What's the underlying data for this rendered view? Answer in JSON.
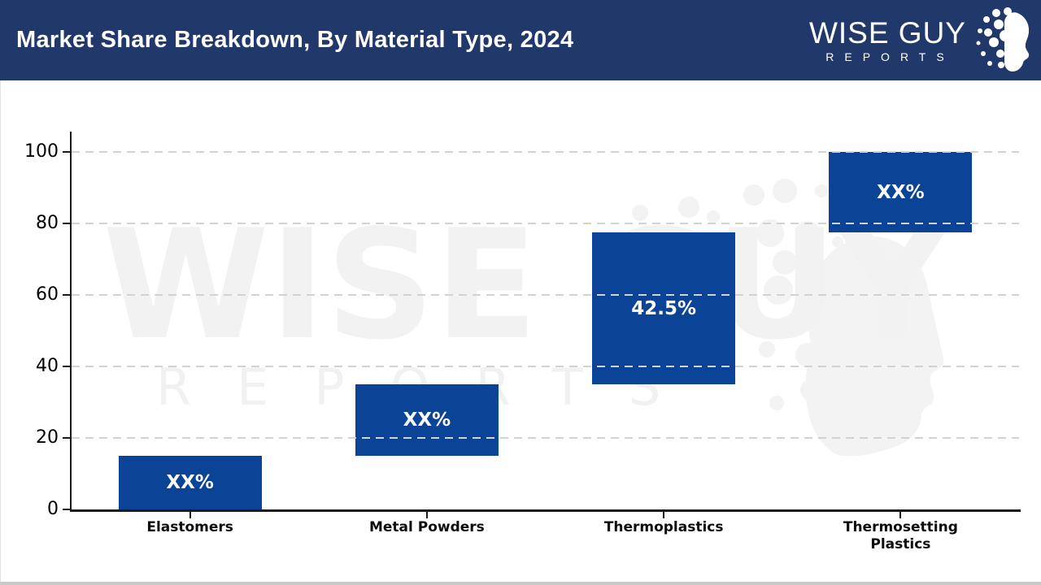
{
  "header": {
    "title": "Market Share Breakdown, By Material Type, 2024",
    "background_color": "#21386b",
    "logo": {
      "line1": "WISE GUY",
      "line2": "REPORTS"
    }
  },
  "watermark": {
    "line1": "WISE GUY",
    "line2": "REPORTS"
  },
  "chart_data": {
    "type": "bar",
    "subtype": "floating-segment-waterfall",
    "title": "Market Share Breakdown, By Material Type, 2024",
    "xlabel": "",
    "ylabel": "",
    "ylim": [
      0,
      100
    ],
    "yticks": [
      0,
      20,
      40,
      60,
      80,
      100
    ],
    "grid": "horizontal-dashed",
    "legend": "none",
    "bar_color": "#0b4397",
    "grid_color": "#d2d2d2",
    "axis_color": "#1b1b1b",
    "bar_label_color": "#ffffff",
    "categories": [
      "Elastomers",
      "Metal Powders",
      "Thermoplastics",
      "Thermosetting Plastics"
    ],
    "series": [
      {
        "name": "Market Share",
        "segments": [
          {
            "category": "Elastomers",
            "start": 0,
            "end": 15,
            "value": 15,
            "label": "XX%"
          },
          {
            "category": "Metal Powders",
            "start": 15,
            "end": 35,
            "value": 20,
            "label": "XX%"
          },
          {
            "category": "Thermoplastics",
            "start": 35,
            "end": 77.5,
            "value": 42.5,
            "label": "42.5%"
          },
          {
            "category": "Thermosetting Plastics",
            "start": 77.5,
            "end": 100,
            "value": 22.5,
            "label": "XX%"
          }
        ]
      }
    ]
  }
}
